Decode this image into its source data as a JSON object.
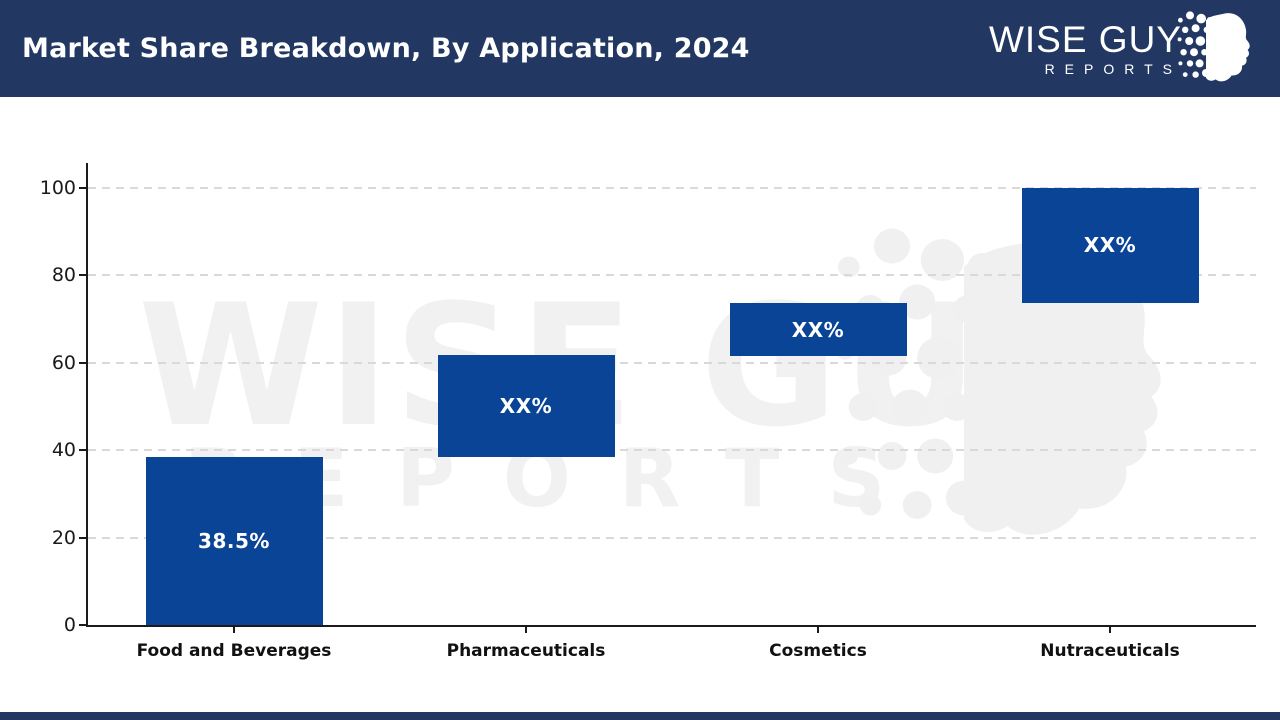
{
  "header": {
    "title": "Market Share Breakdown, By Application, 2024",
    "logo": {
      "line1": "WISE GUY",
      "line2": "REPORTS"
    }
  },
  "watermark": {
    "line1": "WISE GUY",
    "line2": "REPORTS"
  },
  "icons": {
    "logo_face": "dotted-face-profile",
    "watermark_face": "dotted-face-profile"
  },
  "colors": {
    "header_bg": "#223863",
    "bar": "#0A4496",
    "bar_label": "#ffffff",
    "axis": "#1a1a1a",
    "grid": "#d9d9d9",
    "watermark": "#f1f1f1"
  },
  "chart_data": {
    "type": "bar",
    "variant": "floating-waterfall",
    "title": "Market Share Breakdown, By Application, 2024",
    "categories": [
      "Food and Beverages",
      "Pharmaceuticals",
      "Cosmetics",
      "Nutraceuticals"
    ],
    "segments": [
      {
        "category": "Food and Beverages",
        "start": 0,
        "end": 38.5,
        "label": "38.5%"
      },
      {
        "category": "Pharmaceuticals",
        "start": 38.5,
        "end": 61.8,
        "label": "XX%"
      },
      {
        "category": "Cosmetics",
        "start": 61.4,
        "end": 73.6,
        "label": "XX%"
      },
      {
        "category": "Nutraceuticals",
        "start": 73.7,
        "end": 100,
        "label": "XX%"
      }
    ],
    "yticks": [
      0,
      20,
      40,
      60,
      80,
      100
    ],
    "ylim": [
      0,
      105
    ],
    "xlabel": "",
    "ylabel": "",
    "grid": "horizontal-dashed",
    "legend": "none"
  }
}
